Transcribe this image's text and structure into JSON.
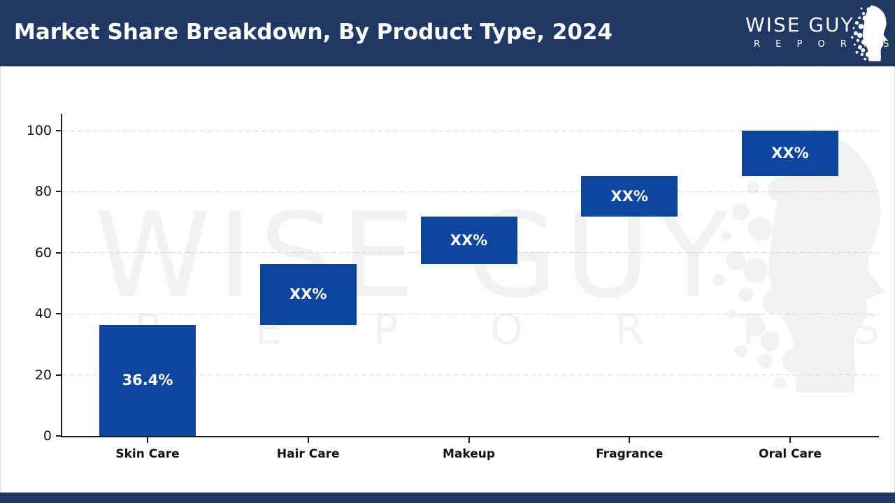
{
  "header": {
    "title": "Market Share Breakdown, By Product Type, 2024",
    "logo": {
      "line1": "WISE GUY",
      "line2": "R E P O R T S"
    }
  },
  "watermark": {
    "line1": "WISE GUY",
    "line2": "R E P O R T S"
  },
  "footer": {
    "text": ""
  },
  "colors": {
    "header_bg": "#1f3864",
    "footer_bg": "#1f3864",
    "bar": "#0c469e",
    "bar_label": "#ffffff",
    "grid": "#d9d9d9",
    "axis": "#1a1a1a",
    "title_text": "#ffffff",
    "watermark": "#f2f2f2"
  },
  "chart_data": {
    "type": "bar",
    "subtype": "waterfall",
    "title": "Market Share Breakdown, By Product Type, 2024",
    "categories": [
      "Skin Care",
      "Hair Care",
      "Makeup",
      "Fragrance",
      "Oral Care"
    ],
    "segments": [
      {
        "category": "Skin Care",
        "from": 0,
        "to": 36.4,
        "label": "36.4%"
      },
      {
        "category": "Hair Care",
        "from": 36.4,
        "to": 56.4,
        "label": "XX%"
      },
      {
        "category": "Makeup",
        "from": 56.4,
        "to": 71.8,
        "label": "XX%"
      },
      {
        "category": "Fragrance",
        "from": 71.8,
        "to": 85.2,
        "label": "XX%"
      },
      {
        "category": "Oral Care",
        "from": 85.2,
        "to": 100.0,
        "label": "XX%"
      }
    ],
    "y_ticks": [
      0,
      20,
      40,
      60,
      80,
      100
    ],
    "ylim": [
      0,
      100
    ],
    "xlabel": "",
    "ylabel": "",
    "grid": "horizontal-dashed",
    "legend": "none"
  }
}
